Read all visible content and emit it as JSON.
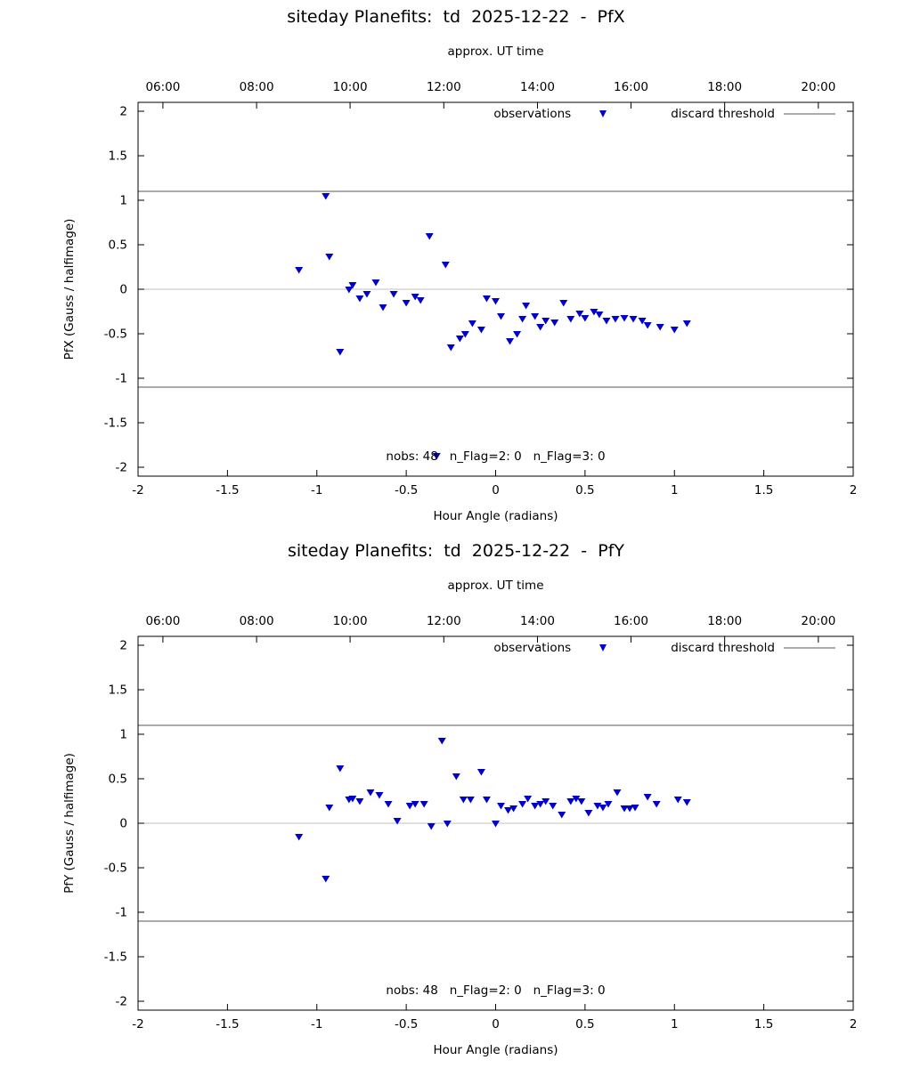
{
  "colors": {
    "marker": "#0000cd",
    "threshold": "#ababab",
    "zero_line": "#c0c0c0",
    "border": "#000000"
  },
  "chart_data": [
    {
      "type": "scatter",
      "title": "siteday Planefits:  td  2025-12-22  -  PfX",
      "top_axis_label": "approx. UT time",
      "xlabel": "Hour Angle (radians)",
      "ylabel": "PfX (Gauss / halfimage)",
      "annotation": "nobs: 48   n_Flag=2: 0   n_Flag=3: 0",
      "legend": [
        {
          "label": "observations",
          "type": "triangle"
        },
        {
          "label": "discard threshold",
          "type": "line"
        }
      ],
      "xlim": [
        -2,
        2
      ],
      "ylim": [
        -2.1,
        2.1
      ],
      "xticks": [
        -2,
        -1.5,
        -1,
        -0.5,
        0,
        0.5,
        1,
        1.5,
        2
      ],
      "yticks": [
        -2,
        -1.5,
        -1,
        -0.5,
        0,
        0.5,
        1,
        1.5,
        2
      ],
      "top_ticks": [
        {
          "label": "06:00",
          "ha": -1.861
        },
        {
          "label": "08:00",
          "ha": -1.337
        },
        {
          "label": "10:00",
          "ha": -0.814
        },
        {
          "label": "12:00",
          "ha": -0.29
        },
        {
          "label": "14:00",
          "ha": 0.234
        },
        {
          "label": "16:00",
          "ha": 0.757
        },
        {
          "label": "18:00",
          "ha": 1.281
        },
        {
          "label": "20:00",
          "ha": 1.805
        }
      ],
      "thresholds": [
        1.1,
        -1.1
      ],
      "zero_line": 0,
      "points": [
        [
          -1.1,
          0.22
        ],
        [
          -0.95,
          1.05
        ],
        [
          -0.93,
          0.37
        ],
        [
          -0.87,
          -0.7
        ],
        [
          -0.82,
          0.0
        ],
        [
          -0.8,
          0.05
        ],
        [
          -0.76,
          -0.1
        ],
        [
          -0.72,
          -0.05
        ],
        [
          -0.67,
          0.08
        ],
        [
          -0.63,
          -0.2
        ],
        [
          -0.57,
          -0.05
        ],
        [
          -0.5,
          -0.15
        ],
        [
          -0.45,
          -0.08
        ],
        [
          -0.42,
          -0.12
        ],
        [
          -0.37,
          0.6
        ],
        [
          -0.33,
          -1.87
        ],
        [
          -0.28,
          0.28
        ],
        [
          -0.25,
          -0.65
        ],
        [
          -0.2,
          -0.55
        ],
        [
          -0.17,
          -0.5
        ],
        [
          -0.13,
          -0.38
        ],
        [
          -0.08,
          -0.45
        ],
        [
          -0.05,
          -0.1
        ],
        [
          0.0,
          -0.13
        ],
        [
          0.03,
          -0.3
        ],
        [
          0.08,
          -0.58
        ],
        [
          0.12,
          -0.5
        ],
        [
          0.15,
          -0.33
        ],
        [
          0.17,
          -0.18
        ],
        [
          0.22,
          -0.3
        ],
        [
          0.25,
          -0.42
        ],
        [
          0.28,
          -0.35
        ],
        [
          0.33,
          -0.37
        ],
        [
          0.38,
          -0.15
        ],
        [
          0.42,
          -0.33
        ],
        [
          0.47,
          -0.27
        ],
        [
          0.5,
          -0.32
        ],
        [
          0.55,
          -0.25
        ],
        [
          0.58,
          -0.28
        ],
        [
          0.62,
          -0.35
        ],
        [
          0.67,
          -0.33
        ],
        [
          0.72,
          -0.32
        ],
        [
          0.77,
          -0.33
        ],
        [
          0.82,
          -0.35
        ],
        [
          0.85,
          -0.4
        ],
        [
          0.92,
          -0.42
        ],
        [
          1.0,
          -0.45
        ],
        [
          1.07,
          -0.38
        ]
      ]
    },
    {
      "type": "scatter",
      "title": "siteday Planefits:  td  2025-12-22  -  PfY",
      "top_axis_label": "approx. UT time",
      "xlabel": "Hour Angle (radians)",
      "ylabel": "PfY (Gauss / halfimage)",
      "annotation": "nobs: 48   n_Flag=2: 0   n_Flag=3: 0",
      "legend": [
        {
          "label": "observations",
          "type": "triangle"
        },
        {
          "label": "discard threshold",
          "type": "line"
        }
      ],
      "xlim": [
        -2,
        2
      ],
      "ylim": [
        -2.1,
        2.1
      ],
      "xticks": [
        -2,
        -1.5,
        -1,
        -0.5,
        0,
        0.5,
        1,
        1.5,
        2
      ],
      "yticks": [
        -2,
        -1.5,
        -1,
        -0.5,
        0,
        0.5,
        1,
        1.5,
        2
      ],
      "top_ticks": [
        {
          "label": "06:00",
          "ha": -1.861
        },
        {
          "label": "08:00",
          "ha": -1.337
        },
        {
          "label": "10:00",
          "ha": -0.814
        },
        {
          "label": "12:00",
          "ha": -0.29
        },
        {
          "label": "14:00",
          "ha": 0.234
        },
        {
          "label": "16:00",
          "ha": 0.757
        },
        {
          "label": "18:00",
          "ha": 1.281
        },
        {
          "label": "20:00",
          "ha": 1.805
        }
      ],
      "thresholds": [
        1.1,
        -1.1
      ],
      "zero_line": 0,
      "points": [
        [
          -1.1,
          -0.15
        ],
        [
          -0.95,
          -0.62
        ],
        [
          -0.93,
          0.18
        ],
        [
          -0.87,
          0.62
        ],
        [
          -0.82,
          0.27
        ],
        [
          -0.8,
          0.28
        ],
        [
          -0.76,
          0.25
        ],
        [
          -0.7,
          0.35
        ],
        [
          -0.65,
          0.32
        ],
        [
          -0.6,
          0.22
        ],
        [
          -0.55,
          0.03
        ],
        [
          -0.48,
          0.2
        ],
        [
          -0.45,
          0.22
        ],
        [
          -0.4,
          0.22
        ],
        [
          -0.36,
          -0.03
        ],
        [
          -0.3,
          0.93
        ],
        [
          -0.27,
          0.0
        ],
        [
          -0.22,
          0.53
        ],
        [
          -0.18,
          0.27
        ],
        [
          -0.14,
          0.27
        ],
        [
          -0.08,
          0.58
        ],
        [
          -0.05,
          0.27
        ],
        [
          0.0,
          0.0
        ],
        [
          0.03,
          0.2
        ],
        [
          0.07,
          0.15
        ],
        [
          0.1,
          0.17
        ],
        [
          0.15,
          0.22
        ],
        [
          0.18,
          0.28
        ],
        [
          0.22,
          0.2
        ],
        [
          0.25,
          0.22
        ],
        [
          0.28,
          0.25
        ],
        [
          0.32,
          0.2
        ],
        [
          0.37,
          0.1
        ],
        [
          0.42,
          0.25
        ],
        [
          0.45,
          0.28
        ],
        [
          0.48,
          0.25
        ],
        [
          0.52,
          0.12
        ],
        [
          0.57,
          0.2
        ],
        [
          0.6,
          0.18
        ],
        [
          0.63,
          0.22
        ],
        [
          0.68,
          0.35
        ],
        [
          0.72,
          0.17
        ],
        [
          0.75,
          0.17
        ],
        [
          0.78,
          0.18
        ],
        [
          0.85,
          0.3
        ],
        [
          0.9,
          0.22
        ],
        [
          1.02,
          0.27
        ],
        [
          1.07,
          0.24
        ]
      ]
    }
  ]
}
